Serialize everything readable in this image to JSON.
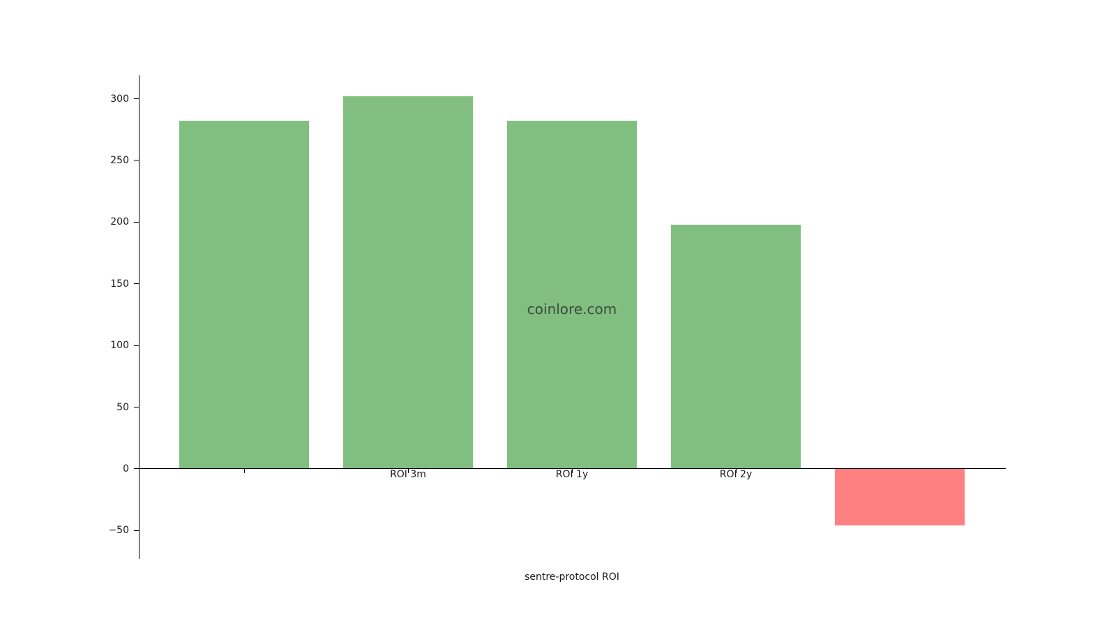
{
  "watermark": "coinlore.com",
  "chart_data": {
    "type": "bar",
    "title": "sentre-protocol ROI",
    "xlabel": "sentre-protocol ROI",
    "ylabel": "",
    "categories": [
      "",
      "ROI 3m",
      "ROI 1y",
      "ROI 2y",
      ""
    ],
    "values": [
      282,
      302,
      282,
      198,
      -46
    ],
    "bar_colors": [
      "#80bf80",
      "#80bf80",
      "#80bf80",
      "#80bf80",
      "#ff8080"
    ],
    "yticks": [
      300,
      250,
      200,
      150,
      100,
      50,
      0,
      -50
    ],
    "ylim": [
      -73,
      319
    ],
    "grid": false,
    "legend": null
  },
  "colors": {
    "positive_bar": "#80bf80",
    "negative_bar": "#ff8080",
    "axis": "#000000",
    "tick_label": "#1a1a1a",
    "watermark": "#3c4a3c",
    "background": "#ffffff"
  }
}
